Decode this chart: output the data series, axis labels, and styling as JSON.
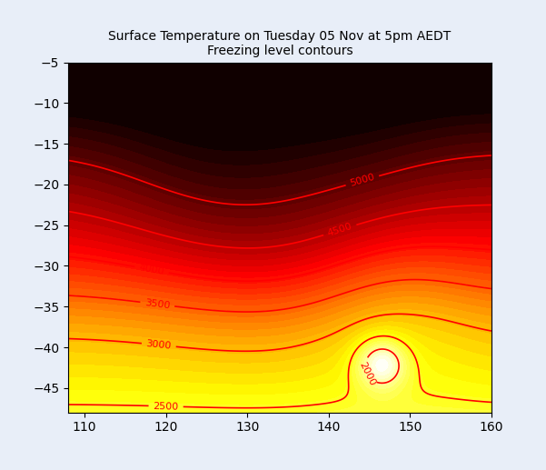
{
  "title": "Surface Temperature on Tuesday 05 Nov at 5pm AEDT",
  "subtitle": "Freezing level contours",
  "title_fontsize": 13,
  "subtitle_fontsize": 10,
  "background_color": "#c8d4e8",
  "ocean_color": "#b8c8e0",
  "border_color": "#cccccc",
  "contour_color": "#ff0000",
  "contour_label_bg": "#ffffff",
  "land_colors": {
    "very_hot": "#cc0000",
    "hot": "#dd2200",
    "warm_red": "#ee4400",
    "orange_hot": "#cc6600",
    "orange": "#dd8800",
    "light_orange": "#eebb44"
  },
  "lon_min": 108,
  "lon_max": 160,
  "lat_min": -48,
  "lat_max": -5,
  "figsize": [
    6.01,
    5.17
  ],
  "dpi": 100
}
